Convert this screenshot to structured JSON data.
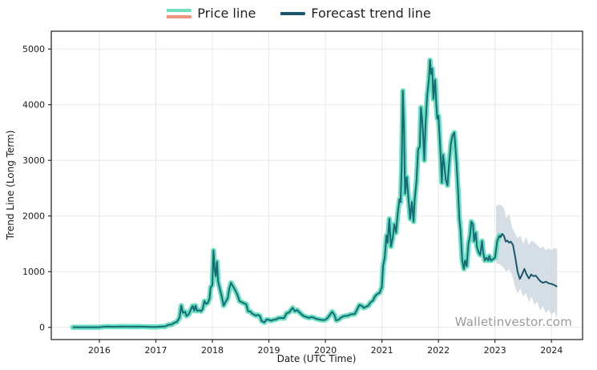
{
  "watermark": "Walletinvestor.com",
  "legend": {
    "items": [
      {
        "label": "Price line",
        "colors": [
          "#6fdfc0",
          "#ef957b"
        ]
      },
      {
        "label": "Forecast trend line",
        "colors": [
          "#19566d"
        ]
      }
    ]
  },
  "colors": {
    "price_glow": "#69e0c0",
    "price_core": "#176a76",
    "forecast_line": "#19566d",
    "confidence_band": "#cdd8df",
    "grid": "#e8e8e8",
    "spine": "#2d2d2d",
    "tick_text": "#1a1a1a",
    "background": "#ffffff"
  },
  "chart_data": {
    "type": "line",
    "title": "",
    "xlabel": "Date (UTC Time)",
    "ylabel": "Trend Line (Long Term)",
    "x_ticks": [
      2016,
      2017,
      2018,
      2019,
      2020,
      2021,
      2022,
      2023,
      2024
    ],
    "y_ticks": [
      0,
      1000,
      2000,
      3000,
      4000,
      5000
    ],
    "xlim": [
      2015.15,
      2024.55
    ],
    "ylim": [
      -220,
      5320
    ],
    "grid": true,
    "legend_position": "top-center",
    "series": [
      {
        "name": "Price line",
        "points": [
          [
            2015.53,
            2
          ],
          [
            2015.6,
            1
          ],
          [
            2015.7,
            1
          ],
          [
            2015.8,
            1
          ],
          [
            2015.9,
            1
          ],
          [
            2016.0,
            2
          ],
          [
            2016.08,
            10
          ],
          [
            2016.15,
            13
          ],
          [
            2016.25,
            10
          ],
          [
            2016.33,
            12
          ],
          [
            2016.42,
            14
          ],
          [
            2016.5,
            12
          ],
          [
            2016.58,
            11
          ],
          [
            2016.67,
            13
          ],
          [
            2016.75,
            12
          ],
          [
            2016.83,
            10
          ],
          [
            2016.92,
            8
          ],
          [
            2017.0,
            8
          ],
          [
            2017.08,
            11
          ],
          [
            2017.17,
            18
          ],
          [
            2017.22,
            45
          ],
          [
            2017.28,
            50
          ],
          [
            2017.33,
            85
          ],
          [
            2017.37,
            95
          ],
          [
            2017.42,
            175
          ],
          [
            2017.45,
            390
          ],
          [
            2017.48,
            260
          ],
          [
            2017.52,
            280
          ],
          [
            2017.54,
            205
          ],
          [
            2017.58,
            230
          ],
          [
            2017.62,
            320
          ],
          [
            2017.65,
            385
          ],
          [
            2017.68,
            300
          ],
          [
            2017.7,
            390
          ],
          [
            2017.73,
            295
          ],
          [
            2017.77,
            305
          ],
          [
            2017.8,
            290
          ],
          [
            2017.83,
            330
          ],
          [
            2017.86,
            470
          ],
          [
            2017.89,
            420
          ],
          [
            2017.92,
            440
          ],
          [
            2017.95,
            520
          ],
          [
            2017.97,
            720
          ],
          [
            2018.0,
            760
          ],
          [
            2018.02,
            1380
          ],
          [
            2018.04,
            1050
          ],
          [
            2018.06,
            920
          ],
          [
            2018.08,
            1180
          ],
          [
            2018.1,
            830
          ],
          [
            2018.13,
            700
          ],
          [
            2018.16,
            580
          ],
          [
            2018.2,
            390
          ],
          [
            2018.23,
            450
          ],
          [
            2018.27,
            520
          ],
          [
            2018.3,
            700
          ],
          [
            2018.33,
            800
          ],
          [
            2018.36,
            745
          ],
          [
            2018.4,
            680
          ],
          [
            2018.44,
            590
          ],
          [
            2018.48,
            470
          ],
          [
            2018.52,
            450
          ],
          [
            2018.56,
            430
          ],
          [
            2018.6,
            415
          ],
          [
            2018.63,
            290
          ],
          [
            2018.67,
            285
          ],
          [
            2018.7,
            250
          ],
          [
            2018.73,
            230
          ],
          [
            2018.77,
            210
          ],
          [
            2018.8,
            225
          ],
          [
            2018.84,
            205
          ],
          [
            2018.87,
            115
          ],
          [
            2018.92,
            90
          ],
          [
            2018.96,
            140
          ],
          [
            2019.0,
            135
          ],
          [
            2019.04,
            120
          ],
          [
            2019.08,
            135
          ],
          [
            2019.12,
            140
          ],
          [
            2019.17,
            165
          ],
          [
            2019.22,
            170
          ],
          [
            2019.27,
            165
          ],
          [
            2019.31,
            250
          ],
          [
            2019.36,
            270
          ],
          [
            2019.42,
            350
          ],
          [
            2019.46,
            290
          ],
          [
            2019.5,
            310
          ],
          [
            2019.54,
            270
          ],
          [
            2019.58,
            230
          ],
          [
            2019.62,
            200
          ],
          [
            2019.67,
            185
          ],
          [
            2019.71,
            170
          ],
          [
            2019.75,
            185
          ],
          [
            2019.79,
            175
          ],
          [
            2019.83,
            155
          ],
          [
            2019.87,
            145
          ],
          [
            2019.92,
            135
          ],
          [
            2019.96,
            130
          ],
          [
            2020.0,
            135
          ],
          [
            2020.04,
            170
          ],
          [
            2020.08,
            225
          ],
          [
            2020.12,
            280
          ],
          [
            2020.16,
            220
          ],
          [
            2020.19,
            125
          ],
          [
            2020.23,
            135
          ],
          [
            2020.27,
            170
          ],
          [
            2020.31,
            195
          ],
          [
            2020.35,
            205
          ],
          [
            2020.4,
            210
          ],
          [
            2020.44,
            230
          ],
          [
            2020.48,
            235
          ],
          [
            2020.52,
            240
          ],
          [
            2020.56,
            320
          ],
          [
            2020.6,
            400
          ],
          [
            2020.64,
            390
          ],
          [
            2020.68,
            350
          ],
          [
            2020.72,
            370
          ],
          [
            2020.76,
            390
          ],
          [
            2020.8,
            450
          ],
          [
            2020.84,
            480
          ],
          [
            2020.88,
            560
          ],
          [
            2020.92,
            600
          ],
          [
            2020.96,
            620
          ],
          [
            2021.0,
            730
          ],
          [
            2021.02,
            1100
          ],
          [
            2021.05,
            1250
          ],
          [
            2021.08,
            1650
          ],
          [
            2021.1,
            1520
          ],
          [
            2021.13,
            1950
          ],
          [
            2021.16,
            1450
          ],
          [
            2021.19,
            1600
          ],
          [
            2021.22,
            1850
          ],
          [
            2021.25,
            1700
          ],
          [
            2021.28,
            2050
          ],
          [
            2021.31,
            2300
          ],
          [
            2021.33,
            2250
          ],
          [
            2021.35,
            2900
          ],
          [
            2021.37,
            4250
          ],
          [
            2021.39,
            3600
          ],
          [
            2021.41,
            2400
          ],
          [
            2021.44,
            2700
          ],
          [
            2021.47,
            2300
          ],
          [
            2021.5,
            1950
          ],
          [
            2021.53,
            2250
          ],
          [
            2021.56,
            1900
          ],
          [
            2021.58,
            2300
          ],
          [
            2021.61,
            2600
          ],
          [
            2021.64,
            3200
          ],
          [
            2021.67,
            3250
          ],
          [
            2021.69,
            3950
          ],
          [
            2021.71,
            3750
          ],
          [
            2021.73,
            3450
          ],
          [
            2021.75,
            3000
          ],
          [
            2021.77,
            3600
          ],
          [
            2021.8,
            4150
          ],
          [
            2021.83,
            4450
          ],
          [
            2021.85,
            4800
          ],
          [
            2021.87,
            4550
          ],
          [
            2021.89,
            4650
          ],
          [
            2021.91,
            4100
          ],
          [
            2021.94,
            4450
          ],
          [
            2021.96,
            4050
          ],
          [
            2021.98,
            3750
          ],
          [
            2022.0,
            3800
          ],
          [
            2022.03,
            3250
          ],
          [
            2022.06,
            2600
          ],
          [
            2022.08,
            3100
          ],
          [
            2022.1,
            2950
          ],
          [
            2022.13,
            2650
          ],
          [
            2022.16,
            2550
          ],
          [
            2022.19,
            2950
          ],
          [
            2022.22,
            3300
          ],
          [
            2022.25,
            3450
          ],
          [
            2022.28,
            3500
          ],
          [
            2022.3,
            3250
          ],
          [
            2022.32,
            2950
          ],
          [
            2022.35,
            2400
          ],
          [
            2022.37,
            1950
          ],
          [
            2022.39,
            1750
          ],
          [
            2022.42,
            1200
          ],
          [
            2022.45,
            1050
          ],
          [
            2022.47,
            1200
          ],
          [
            2022.5,
            1100
          ],
          [
            2022.53,
            1500
          ],
          [
            2022.56,
            1650
          ],
          [
            2022.58,
            1900
          ],
          [
            2022.61,
            1850
          ],
          [
            2022.63,
            1550
          ],
          [
            2022.66,
            1700
          ],
          [
            2022.68,
            1450
          ],
          [
            2022.71,
            1350
          ],
          [
            2022.74,
            1300
          ],
          [
            2022.77,
            1550
          ],
          [
            2022.79,
            1350
          ],
          [
            2022.82,
            1200
          ],
          [
            2022.85,
            1250
          ],
          [
            2022.88,
            1200
          ],
          [
            2022.9,
            1280
          ],
          [
            2022.93,
            1200
          ],
          [
            2022.96,
            1220
          ],
          [
            2023.0,
            1250
          ],
          [
            2023.04,
            1550
          ],
          [
            2023.08,
            1650
          ]
        ]
      },
      {
        "name": "Forecast trend line",
        "points": [
          [
            2023.08,
            1650
          ],
          [
            2023.1,
            1620
          ],
          [
            2023.13,
            1680
          ],
          [
            2023.16,
            1640
          ],
          [
            2023.19,
            1540
          ],
          [
            2023.22,
            1560
          ],
          [
            2023.25,
            1520
          ],
          [
            2023.28,
            1540
          ],
          [
            2023.32,
            1480
          ],
          [
            2023.36,
            1250
          ],
          [
            2023.4,
            1000
          ],
          [
            2023.44,
            870
          ],
          [
            2023.48,
            950
          ],
          [
            2023.52,
            1050
          ],
          [
            2023.56,
            950
          ],
          [
            2023.6,
            880
          ],
          [
            2023.64,
            950
          ],
          [
            2023.68,
            920
          ],
          [
            2023.72,
            930
          ],
          [
            2023.76,
            880
          ],
          [
            2023.8,
            830
          ],
          [
            2023.85,
            800
          ],
          [
            2023.9,
            820
          ],
          [
            2023.95,
            790
          ],
          [
            2024.0,
            780
          ],
          [
            2024.05,
            760
          ],
          [
            2024.1,
            730
          ]
        ]
      }
    ],
    "confidence_band": {
      "name": "forecast-confidence-band",
      "points": [
        [
          2023.02,
          1150,
          2180
        ],
        [
          2023.08,
          1130,
          2210
        ],
        [
          2023.12,
          1100,
          2190
        ],
        [
          2023.16,
          1060,
          2140
        ],
        [
          2023.2,
          1000,
          1950
        ],
        [
          2023.25,
          1050,
          2050
        ],
        [
          2023.3,
          950,
          1800
        ],
        [
          2023.35,
          750,
          1700
        ],
        [
          2023.4,
          600,
          1600
        ],
        [
          2023.45,
          700,
          1650
        ],
        [
          2023.5,
          550,
          1500
        ],
        [
          2023.55,
          620,
          1620
        ],
        [
          2023.6,
          450,
          1480
        ],
        [
          2023.65,
          550,
          1560
        ],
        [
          2023.7,
          400,
          1520
        ],
        [
          2023.75,
          460,
          1480
        ],
        [
          2023.8,
          300,
          1420
        ],
        [
          2023.85,
          380,
          1450
        ],
        [
          2023.9,
          250,
          1380
        ],
        [
          2023.95,
          320,
          1420
        ],
        [
          2024.0,
          220,
          1380
        ],
        [
          2024.05,
          280,
          1430
        ],
        [
          2024.1,
          160,
          1400
        ]
      ]
    }
  }
}
